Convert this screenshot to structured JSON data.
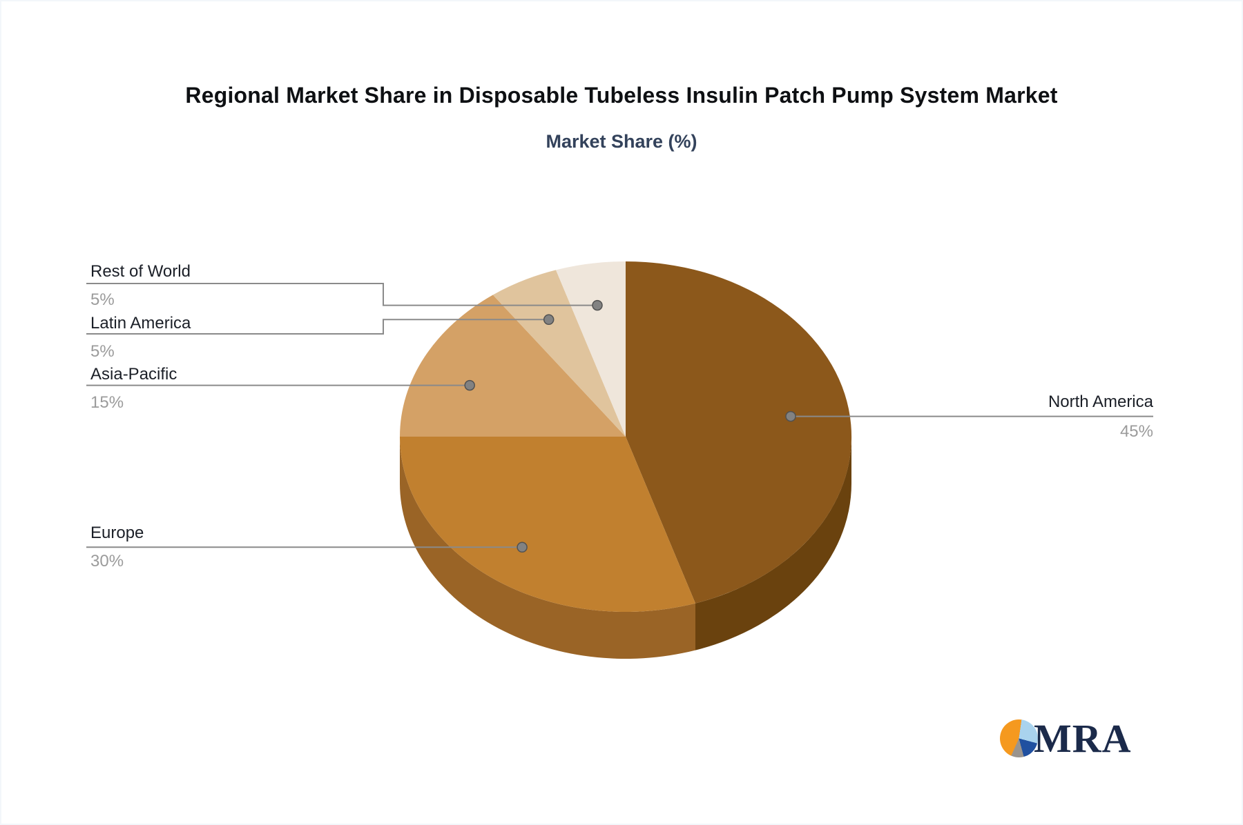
{
  "header": {
    "title": "Regional Market Share in Disposable Tubeless Insulin Patch Pump System Market",
    "subtitle": "Market Share (%)"
  },
  "chart_data": {
    "type": "pie",
    "style": "3d-pie",
    "title": "Regional Market Share in Disposable Tubeless Insulin Patch Pump System Market",
    "subtitle": "Market Share (%)",
    "unit": "%",
    "start_angle_deg": 0,
    "direction": "clockwise",
    "categories": [
      "North America",
      "Europe",
      "Asia-Pacific",
      "Latin America",
      "Rest of World"
    ],
    "values": [
      45,
      30,
      15,
      5,
      5
    ],
    "value_labels": [
      "45%",
      "30%",
      "15%",
      "5%",
      "5%"
    ],
    "colors": [
      "#8C581B",
      "#C1802F",
      "#D4A166",
      "#E0C49D",
      "#EFE6DB"
    ],
    "side_colors": [
      "#6A420E",
      "#9A6426",
      null,
      null,
      null
    ],
    "label_color": "#1b1f27",
    "value_color": "#9b9b9b",
    "connector_color": "#8a8a8a",
    "legend_position": "callout-labels"
  },
  "logo": {
    "text": "MRA",
    "icon": "pie-chart-icon",
    "icon_colors": [
      "#f5991f",
      "#a9d3ee",
      "#2050a0",
      "#9a948e"
    ],
    "text_color": "#1b2a4a"
  }
}
